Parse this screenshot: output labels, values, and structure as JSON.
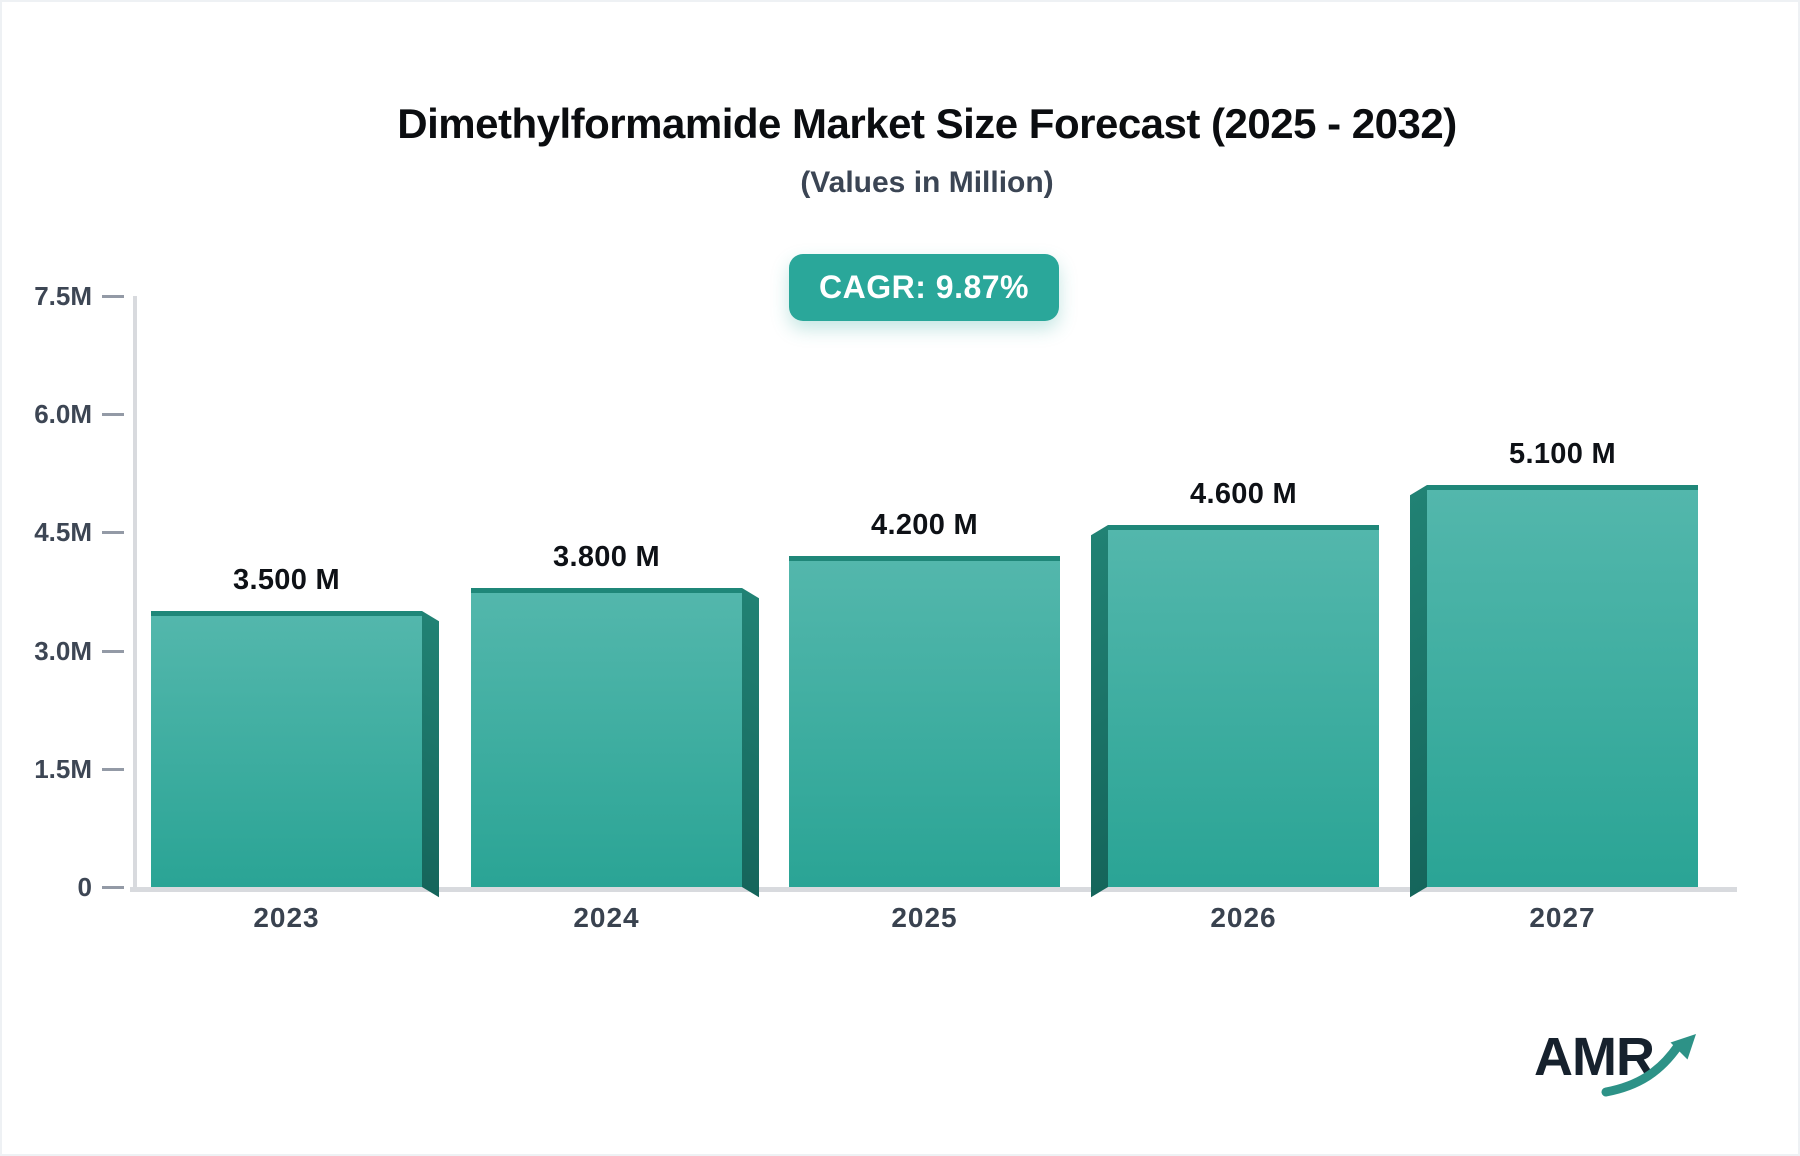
{
  "title": "Dimethylformamide Market Size Forecast (2025 - 2032)",
  "subtitle": "(Values in Million)",
  "cagr_badge": "CAGR: 9.87%",
  "chart_data": {
    "type": "bar",
    "title": "Dimethylformamide Market Size Forecast (2025 - 2032)",
    "subtitle": "(Values in Million)",
    "unit": "Million (M)",
    "cagr": "9.87%",
    "categories": [
      "2023",
      "2024",
      "2025",
      "2026",
      "2027"
    ],
    "values": [
      3.5,
      3.8,
      4.2,
      4.6,
      5.1
    ],
    "value_labels": [
      "3.500 M",
      "3.800 M",
      "4.200 M",
      "4.600 M",
      "5.100 M"
    ],
    "xlabel": "",
    "ylabel": "",
    "ylim": [
      0,
      7.5
    ],
    "yticks": [
      {
        "label": "7.5M",
        "value": 7.5
      },
      {
        "label": "6.0M",
        "value": 6.0
      },
      {
        "label": "4.5M",
        "value": 4.5
      },
      {
        "label": "3.0M",
        "value": 3.0
      },
      {
        "label": "1.5M",
        "value": 1.5
      },
      {
        "label": "0",
        "value": 0
      }
    ],
    "grid": false,
    "legend": false,
    "bar_style": "3d-slab"
  },
  "logo": {
    "text": "AMR",
    "icon": "trend-arrow-icon"
  },
  "colors": {
    "bar_face_top": "#53b7ac",
    "bar_face_bottom": "#2aa495",
    "bar_face_edge": "#1f8779",
    "bar_side_top": "#218274",
    "bar_side_bottom": "#15655b",
    "badge_bg": "#2aa79a",
    "badge_text": "#ffffff",
    "axis_line": "#d8dade",
    "tick": "#939aa6",
    "tick_label": "#3d4654",
    "year_label": "#39424f",
    "value_label": "#0e1116",
    "title": "#0b0d10",
    "subtitle": "#3b4554",
    "logo_text": "#16212d",
    "logo_arrow": "#2d9287"
  }
}
